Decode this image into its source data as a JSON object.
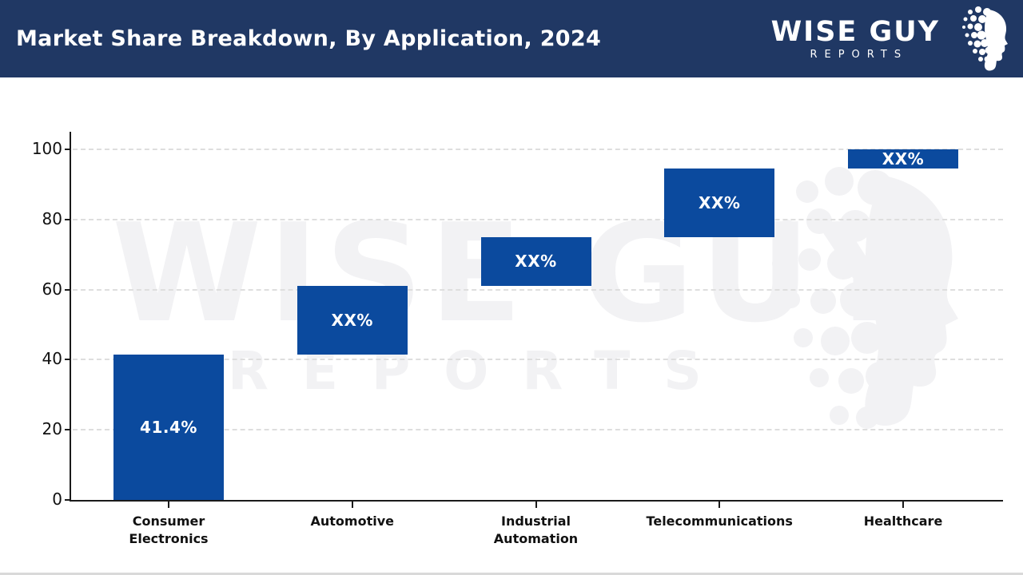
{
  "header": {
    "title": "Market Share Breakdown, By Application, 2024",
    "logo": {
      "line1": "WISE GUY",
      "line2": "REPORTS"
    }
  },
  "watermark": {
    "line1": "WISE GUY",
    "line2": "REPORTS"
  },
  "chart_data": {
    "type": "bar",
    "subtype": "waterfall",
    "title": "Market Share Breakdown, By Application, 2024",
    "xlabel": "",
    "ylabel": "",
    "ylim": [
      0,
      105
    ],
    "yticks": [
      0,
      20,
      40,
      60,
      80,
      100
    ],
    "grid": "horizontal-dashed",
    "legend": "none",
    "bar_color": "#0b4a9e",
    "value_label_color": "#ffffff",
    "categories": [
      {
        "name": "Consumer Electronics",
        "label_lines": [
          "Consumer",
          "Electronics"
        ],
        "start": 0,
        "end": 41.4,
        "value": 41.4,
        "value_label": "41.4%"
      },
      {
        "name": "Automotive",
        "label_lines": [
          "Automotive"
        ],
        "start": 41.4,
        "end": 61,
        "value": 19.6,
        "value_label": "XX%"
      },
      {
        "name": "Industrial Automation",
        "label_lines": [
          "Industrial",
          "Automation"
        ],
        "start": 61,
        "end": 75,
        "value": 14,
        "value_label": "XX%"
      },
      {
        "name": "Telecommunications",
        "label_lines": [
          "Telecommunications"
        ],
        "start": 75,
        "end": 94.5,
        "value": 19.5,
        "value_label": "XX%"
      },
      {
        "name": "Healthcare",
        "label_lines": [
          "Healthcare"
        ],
        "start": 94.5,
        "end": 100,
        "value": 5.5,
        "value_label": "XX%"
      }
    ]
  },
  "colors": {
    "header_bg": "#203864",
    "bar": "#0b4a9e",
    "grid": "#dedede",
    "axis": "#1a1a1a",
    "watermark": "#f2f2f4"
  }
}
